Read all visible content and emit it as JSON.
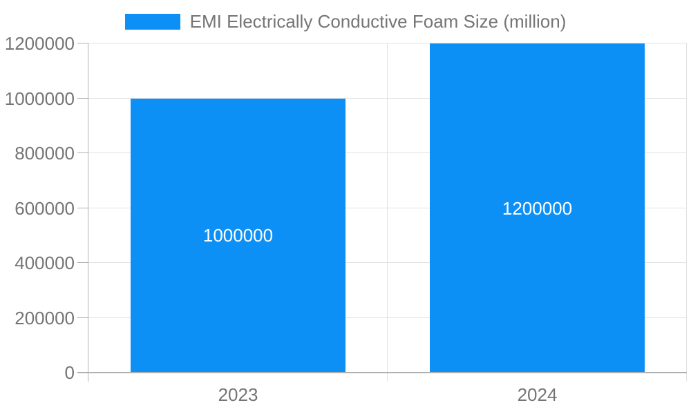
{
  "legend": {
    "label": "EMI Electrically Conductive Foam Size (million)"
  },
  "colors": {
    "bar": "#0d90f5",
    "bar_label_text": "#ffffff",
    "axis_line": "#b0b0b0",
    "grid_line": "#e2e2e2",
    "tick_text": "#757575",
    "background": "#ffffff"
  },
  "chart_data": {
    "type": "bar",
    "title": "EMI Electrically Conductive Foam Size (million)",
    "legend_position": "top",
    "grid": "horizontal",
    "categories": [
      "2023",
      "2024"
    ],
    "series": [
      {
        "name": "EMI Electrically Conductive Foam Size (million)",
        "values": [
          1000000,
          1200000
        ]
      }
    ],
    "values": [
      1000000,
      1200000
    ],
    "bar_labels": [
      "1000000",
      "1200000"
    ],
    "xlabel": "",
    "ylabel": "",
    "ylim": [
      0,
      1200000
    ],
    "y_ticks": [
      0,
      200000,
      400000,
      600000,
      800000,
      1000000,
      1200000
    ],
    "y_tick_labels": [
      "0",
      "200000",
      "400000",
      "600000",
      "800000",
      "1000000",
      "1200000"
    ]
  }
}
